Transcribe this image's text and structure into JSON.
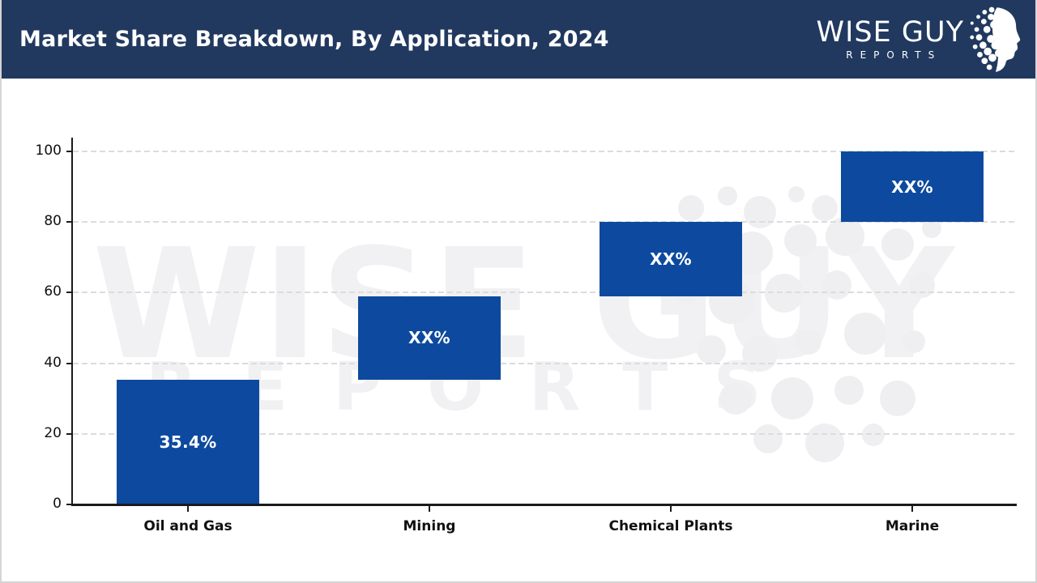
{
  "header": {
    "title": "Market Share Breakdown, By Application, 2024",
    "bg_color": "#21395f",
    "logo": {
      "line1": "WISE GUY",
      "line2": "REPORTS"
    }
  },
  "watermark": {
    "line1": "WISE GUY",
    "line2": "REPORTS"
  },
  "chart_data": {
    "type": "bar",
    "subtype": "waterfall-floating-bars",
    "title": "Market Share Breakdown, By Application, 2024",
    "categories": [
      "Oil and Gas",
      "Mining",
      "Chemical Plants",
      "Marine"
    ],
    "segments": [
      {
        "category": "Oil and Gas",
        "start": 0,
        "end": 35.4,
        "label": "35.4%"
      },
      {
        "category": "Mining",
        "start": 35.4,
        "end": 59,
        "label": "XX%"
      },
      {
        "category": "Chemical Plants",
        "start": 59,
        "end": 80,
        "label": "XX%"
      },
      {
        "category": "Marine",
        "start": 80,
        "end": 100,
        "label": "XX%"
      }
    ],
    "y_ticks": [
      0,
      20,
      40,
      60,
      80,
      100
    ],
    "ylim": [
      0,
      104
    ],
    "xlabel": "",
    "ylabel": "",
    "grid": "horizontal-dashed",
    "legend": "none",
    "bar_color": "#0d4a9f",
    "label_color": "#ffffff"
  }
}
